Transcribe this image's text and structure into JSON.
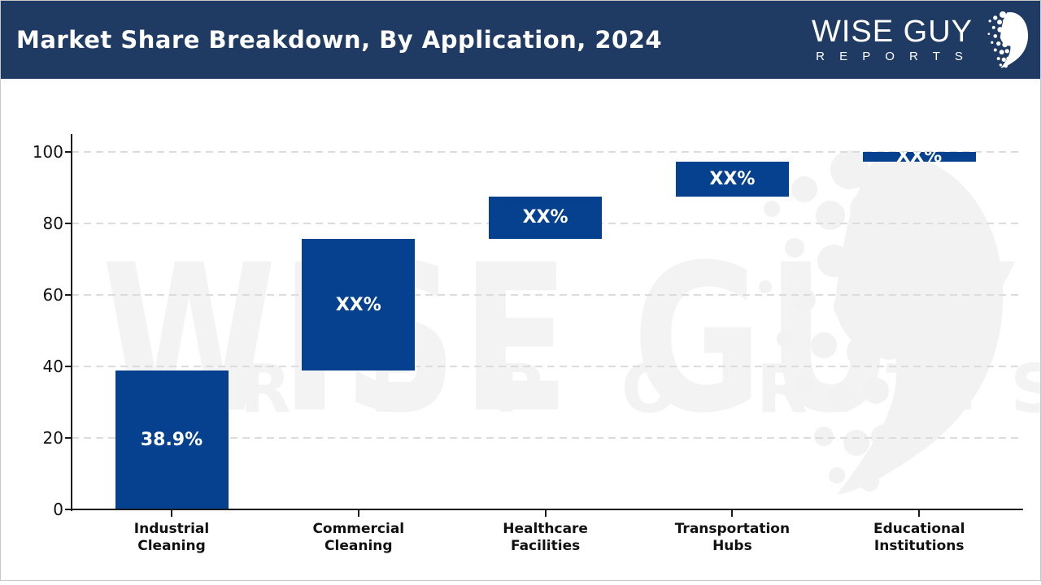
{
  "header": {
    "title": "Market Share Breakdown, By Application, 2024",
    "logo_line1": "WISE GUY",
    "logo_line2": "R E P O R T S"
  },
  "watermark": {
    "line1": "WISE GUY",
    "line2": "R E P O R T S"
  },
  "colors": {
    "header_bg": "#1f3a63",
    "bar": "#05418f",
    "grid": "#dcdcdc",
    "axis": "#1a1a1a",
    "bar_label": "#ffffff",
    "watermark": "#f3f3f3"
  },
  "chart_data": {
    "type": "bar",
    "subtype": "waterfall",
    "title": "Market Share Breakdown, By Application, 2024",
    "xlabel": "",
    "ylabel": "",
    "ylim": [
      0,
      104
    ],
    "yticks": [
      0,
      20,
      40,
      60,
      80,
      100
    ],
    "grid": "horizontal-dashed",
    "legend": "none",
    "categories": [
      "Industrial Cleaning",
      "Commercial Cleaning",
      "Healthcare Facilities",
      "Transportation Hubs",
      "Educational Institutions"
    ],
    "bars": [
      {
        "category": "Industrial Cleaning",
        "label_line1": "Industrial",
        "label_line2": "Cleaning",
        "start": 0,
        "end": 38.9,
        "value_label": "38.9%"
      },
      {
        "category": "Commercial Cleaning",
        "label_line1": "Commercial",
        "label_line2": "Cleaning",
        "start": 38.9,
        "end": 75.6,
        "value_label": "XX%"
      },
      {
        "category": "Healthcare Facilities",
        "label_line1": "Healthcare",
        "label_line2": "Facilities",
        "start": 75.6,
        "end": 87.6,
        "value_label": "XX%"
      },
      {
        "category": "Transportation Hubs",
        "label_line1": "Transportation",
        "label_line2": "Hubs",
        "start": 87.6,
        "end": 97.3,
        "value_label": "XX%"
      },
      {
        "category": "Educational Institutions",
        "label_line1": "Educational",
        "label_line2": "Institutions",
        "start": 97.3,
        "end": 100,
        "value_label": "XX%"
      }
    ]
  }
}
